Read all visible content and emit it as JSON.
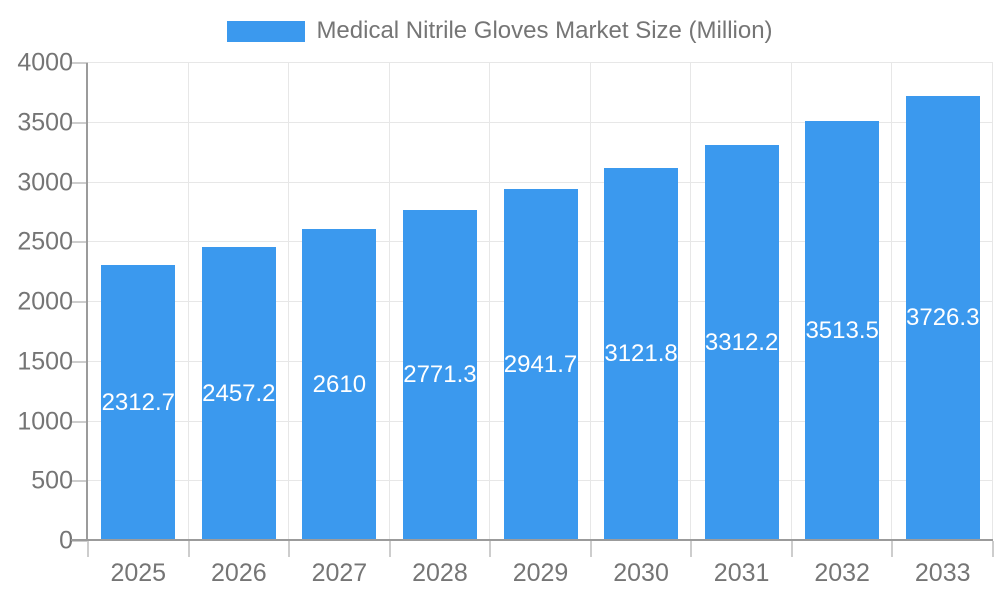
{
  "chart_data": {
    "type": "bar",
    "title": "Medical Nitrile Gloves Market Size (Million)",
    "categories": [
      "2025",
      "2026",
      "2027",
      "2028",
      "2029",
      "2030",
      "2031",
      "2032",
      "2033"
    ],
    "values": [
      2312.7,
      2457.2,
      2610,
      2771.3,
      2941.7,
      3121.8,
      3312.2,
      3513.5,
      3726.3
    ],
    "xlabel": "",
    "ylabel": "",
    "ylim": [
      0,
      4000
    ],
    "ytick_step": 500,
    "ytick_labels": [
      "0",
      "500",
      "1000",
      "1500",
      "2000",
      "2500",
      "3000",
      "3500",
      "4000"
    ],
    "grid": true,
    "legend_position": "top-center",
    "value_labels_inside_bars": true,
    "colors": {
      "bar": "#3B99EE",
      "bar_label_text": "#FFFFFF",
      "axis_text": "#757575",
      "grid_line": "#E7E7E7",
      "tick_line": "#CDCDCD",
      "axis_line": "#9B9B9B"
    }
  }
}
